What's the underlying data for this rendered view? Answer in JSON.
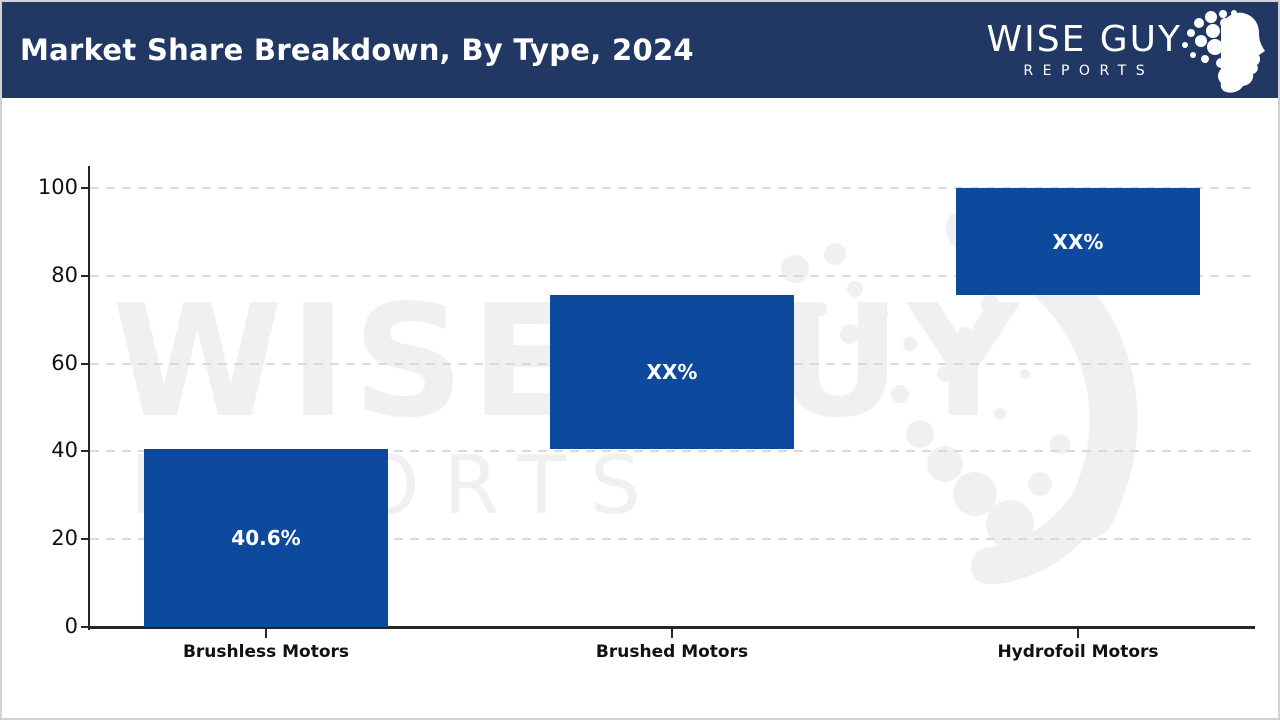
{
  "header": {
    "title": "Market Share Breakdown, By Type, 2024",
    "logo": {
      "line1": "WISE GUY",
      "line2": "REPORTS"
    }
  },
  "watermark": {
    "line1": "WISE GUY",
    "line2": "REPORTS"
  },
  "chart_data": {
    "type": "bar",
    "variant": "stacked-waterfall",
    "title": "Market Share Breakdown, By Type, 2024",
    "categories": [
      "Brushless Motors",
      "Brushed Motors",
      "Hydrofoil Motors"
    ],
    "segments": [
      {
        "category": "Brushless Motors",
        "start": 0,
        "end": 40.6,
        "label": "40.6%"
      },
      {
        "category": "Brushed Motors",
        "start": 40.6,
        "end": 75.6,
        "label": "XX%"
      },
      {
        "category": "Hydrofoil Motors",
        "start": 75.6,
        "end": 100,
        "label": "XX%"
      }
    ],
    "yticks": [
      0,
      20,
      40,
      60,
      80,
      100
    ],
    "ylim": [
      0,
      105
    ],
    "xlabel": "",
    "ylabel": "",
    "grid": "horizontal-dashed",
    "legend": "none",
    "colors": {
      "bar": "#0d4a9e",
      "grid": "#dadada",
      "axis": "#262626",
      "value_label": "#ffffff",
      "header_bg": "#213764",
      "watermark": "#f0f0f2",
      "frame_border": "#d2d2d2"
    }
  }
}
